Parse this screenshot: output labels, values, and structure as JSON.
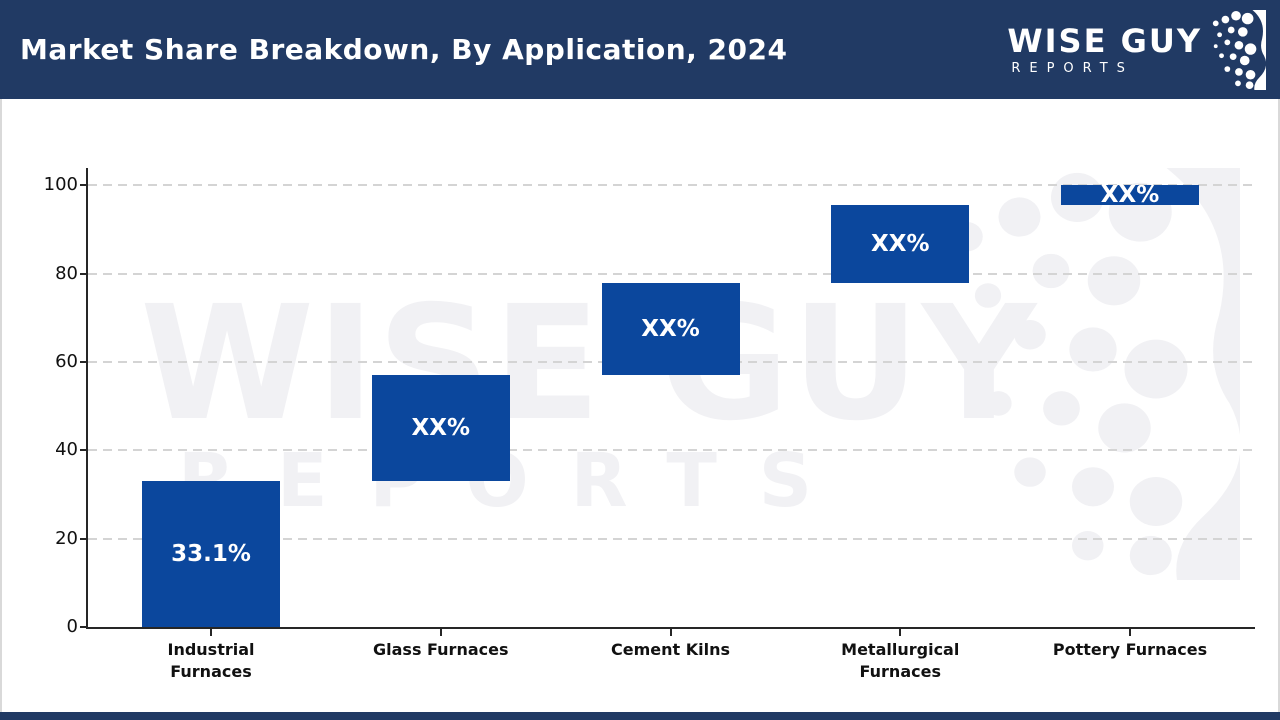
{
  "header": {
    "title": "Market Share Breakdown, By Application, 2024",
    "bg_color": "#213a64",
    "logo": {
      "line1": "WISE GUY",
      "line2": "REPORTS"
    }
  },
  "watermark": {
    "line1": "WISE GUY",
    "line2": "REPORTS"
  },
  "footer": {
    "bg_color": "#213a64"
  },
  "chart_data": {
    "type": "bar",
    "subtype": "waterfall",
    "title": "Market Share Breakdown, By Application, 2024",
    "categories": [
      "Industrial\nFurnaces",
      "Glass Furnaces",
      "Cement Kilns",
      "Metallurgical\nFurnaces",
      "Pottery Furnaces"
    ],
    "segments": [
      {
        "category": "Industrial Furnaces",
        "label": "33.1%",
        "start": 0,
        "end": 33.1
      },
      {
        "category": "Glass Furnaces",
        "label": "XX%",
        "start": 33.1,
        "end": 57
      },
      {
        "category": "Cement Kilns",
        "label": "XX%",
        "start": 57,
        "end": 78
      },
      {
        "category": "Metallurgical Furnaces",
        "label": "XX%",
        "start": 78,
        "end": 95.5
      },
      {
        "category": "Pottery Furnaces",
        "label": "XX%",
        "start": 95.5,
        "end": 100
      }
    ],
    "yticks": [
      0,
      20,
      40,
      60,
      80,
      100
    ],
    "ylim": [
      0,
      104
    ],
    "xlabel": "",
    "ylabel": "",
    "bar_color": "#0b479d",
    "grid": "horizontal-dashed",
    "legend": "none"
  }
}
